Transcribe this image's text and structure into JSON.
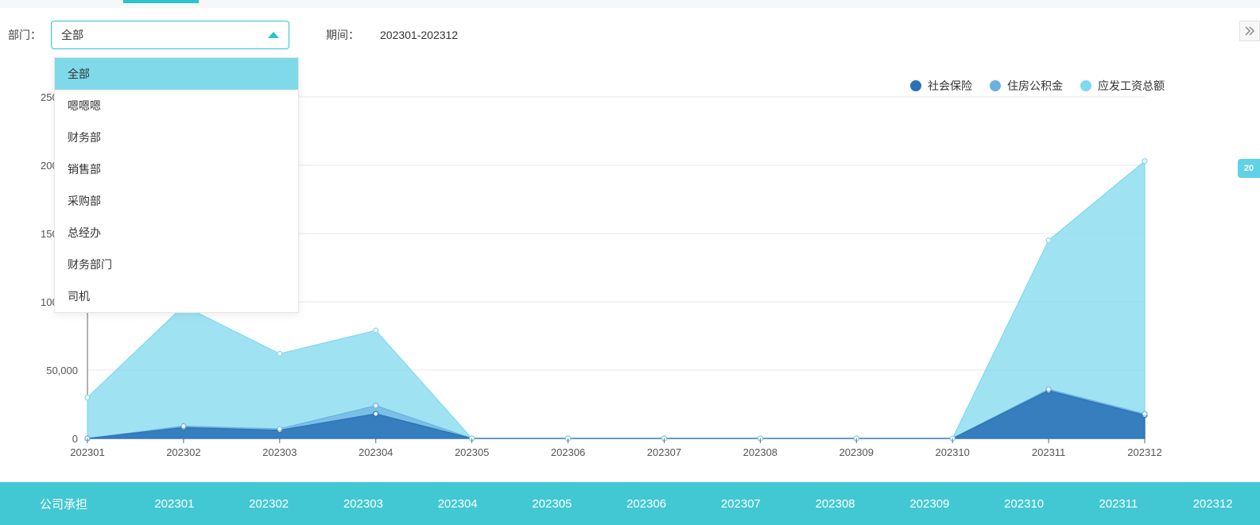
{
  "filters": {
    "dept_label": "部门：",
    "dept_selected": "全部",
    "period_label": "期间：",
    "period_value": "202301-202312",
    "options": [
      "全部",
      "嗯嗯嗯",
      "财务部",
      "销售部",
      "采购部",
      "总经办",
      "财务部门",
      "司机"
    ]
  },
  "side_tab": "20",
  "chart": {
    "type": "area",
    "categories": [
      "202301",
      "202302",
      "202303",
      "202304",
      "202305",
      "202306",
      "202307",
      "202308",
      "202309",
      "202310",
      "202311",
      "202312"
    ],
    "series": [
      {
        "name": "社会保险",
        "color": "#2a72b5",
        "fill_opacity": 0.85,
        "values": [
          0,
          8000,
          6000,
          18000,
          0,
          0,
          0,
          0,
          0,
          0,
          35000,
          17000
        ]
      },
      {
        "name": "住房公积金",
        "color": "#6bb1e0",
        "fill_opacity": 0.7,
        "values": [
          0,
          9000,
          7000,
          24000,
          0,
          0,
          0,
          0,
          0,
          0,
          36000,
          18000
        ]
      },
      {
        "name": "应发工资总额",
        "color": "#7fd9ef",
        "fill_opacity": 0.75,
        "values": [
          30000,
          97000,
          62000,
          79000,
          0,
          0,
          0,
          0,
          0,
          0,
          145000,
          203000
        ]
      }
    ],
    "ylim": [
      0,
      250000
    ],
    "yticks": [
      0,
      50000,
      100000,
      150000,
      200000,
      250000
    ],
    "ytick_labels": [
      "0",
      "50,000",
      "100,000",
      "150,000",
      "200,000",
      "250,000"
    ],
    "grid_color": "#e7e7e7",
    "axis_color": "#666666",
    "background_color": "#ffffff",
    "label_fontsize": 13,
    "axis_fontsize": 13,
    "marker": {
      "radius": 3,
      "fill": "#ffffff",
      "stroke_width": 1.2
    }
  },
  "table": {
    "row_label": "公司承担",
    "columns": [
      "202301",
      "202302",
      "202303",
      "202304",
      "202305",
      "202306",
      "202307",
      "202308",
      "202309",
      "202310",
      "202311",
      "202312"
    ],
    "header_bg": "#42c8d2",
    "header_color": "#ffffff"
  }
}
